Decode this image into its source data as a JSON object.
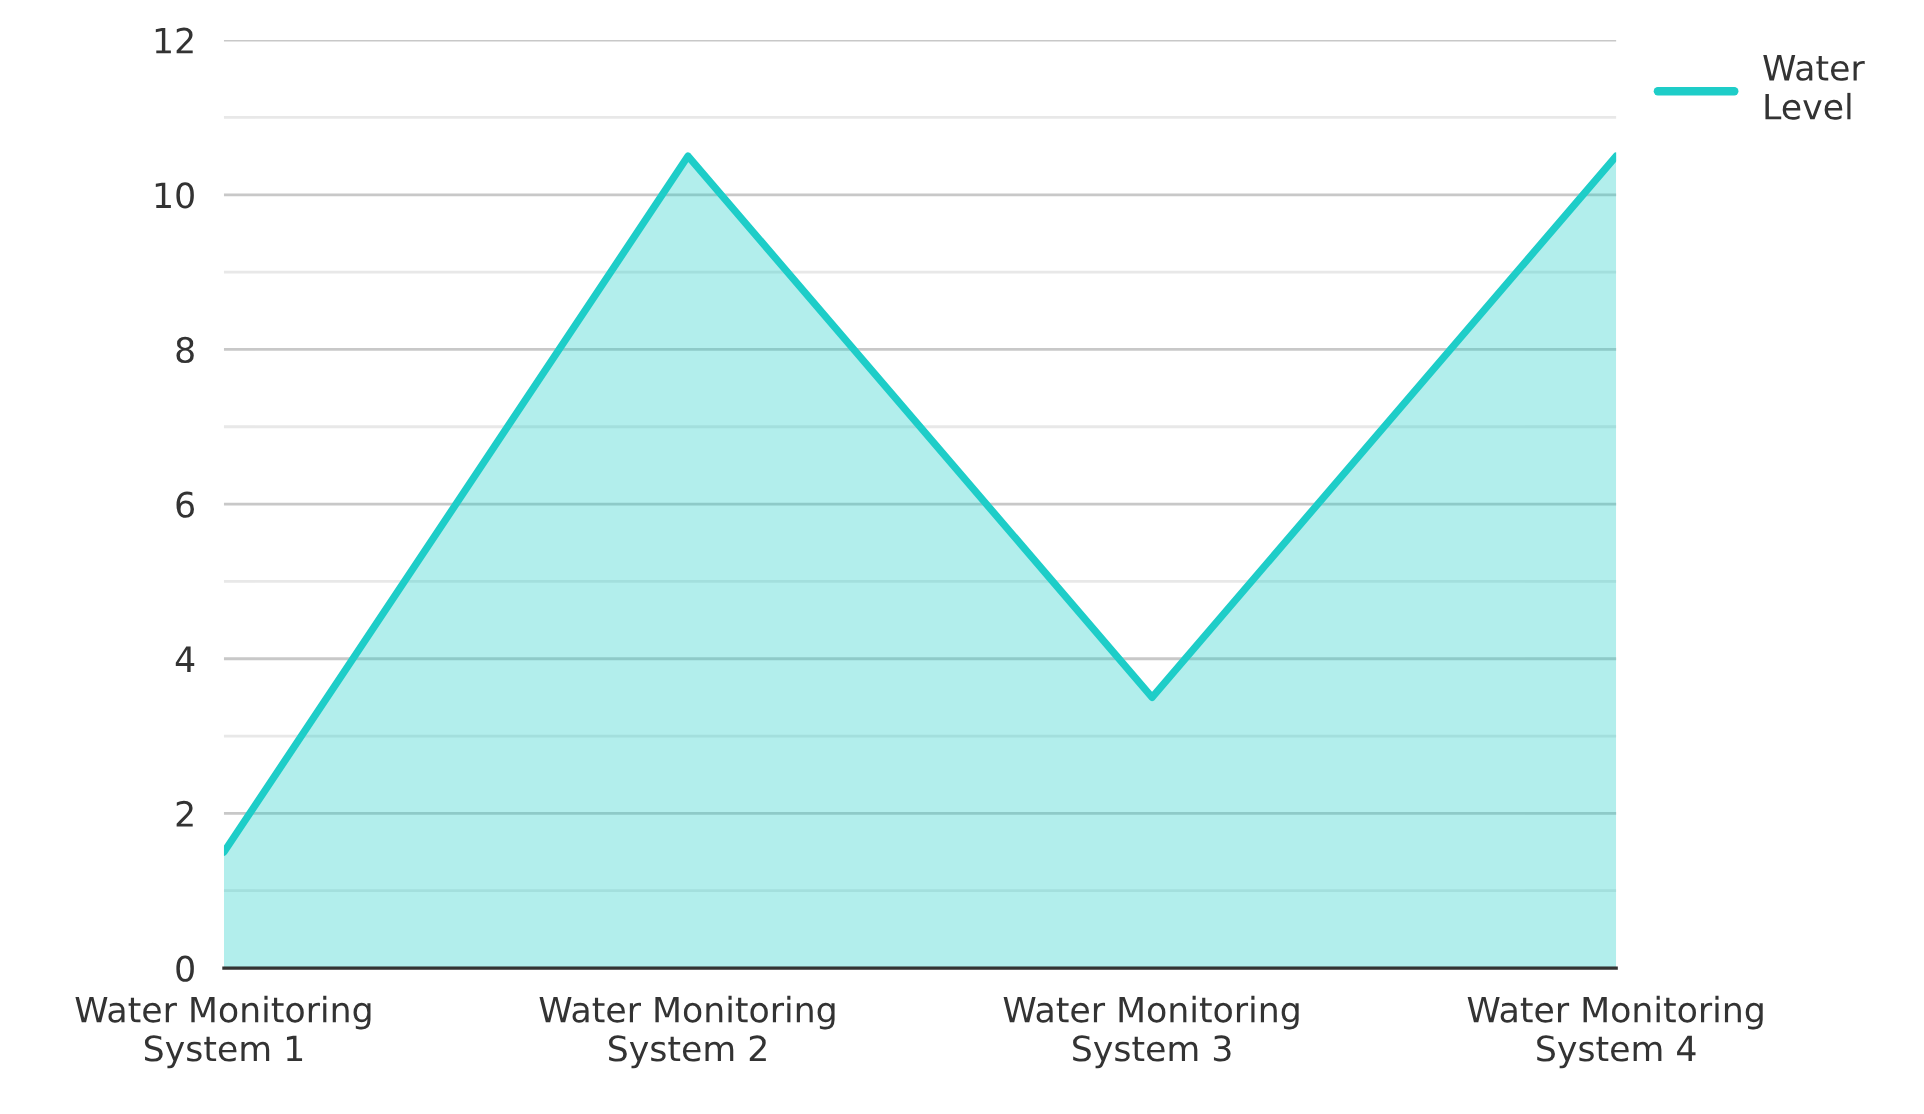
{
  "chart_data": {
    "type": "area",
    "categories": [
      "Water Monitoring System 1",
      "Water Monitoring System 2",
      "Water Monitoring System 3",
      "Water Monitoring System 4"
    ],
    "series": [
      {
        "name": "Water Level",
        "color": "#1ecdc8",
        "values": [
          1.5,
          10.5,
          3.5,
          10.5
        ]
      }
    ],
    "ylim": [
      0,
      12
    ],
    "yticks": [
      0,
      {
        "value": 1,
        "label": null
      },
      2,
      {
        "value": 3,
        "label": null
      },
      4,
      {
        "value": 5,
        "label": null
      },
      6,
      {
        "value": 7,
        "label": null
      },
      8,
      {
        "value": 9,
        "label": null
      },
      10,
      {
        "value": 11,
        "label": null
      },
      12
    ],
    "grid": "y",
    "legend": "top right"
  }
}
